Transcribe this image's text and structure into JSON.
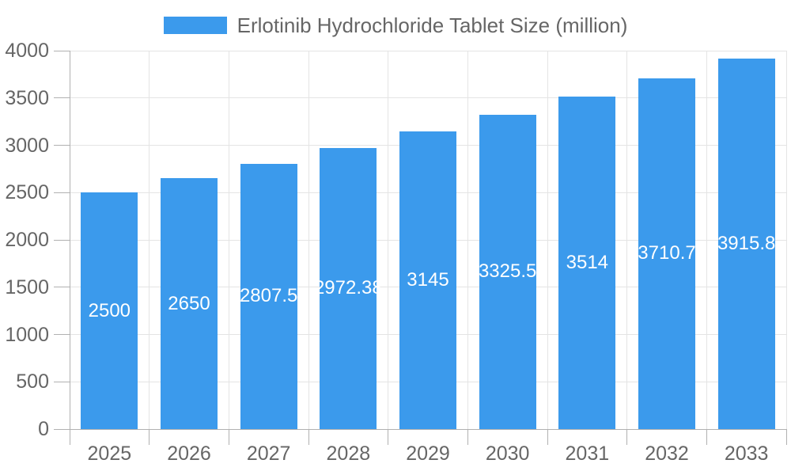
{
  "legend": {
    "label": "Erlotinib Hydrochloride Tablet Size (million)"
  },
  "colors": {
    "bar": "#3B9AEC",
    "grid": "#E4E4E4",
    "axis": "#B1B1B1",
    "tick_text": "#666666",
    "value_label": "#FFFFFF",
    "background": "#FFFFFF"
  },
  "chart_data": {
    "type": "bar",
    "title": "Erlotinib Hydrochloride Tablet Size (million)",
    "categories": [
      "2025",
      "2026",
      "2027",
      "2028",
      "2029",
      "2030",
      "2031",
      "2032",
      "2033"
    ],
    "values": [
      2500,
      2650,
      2807.5,
      2972.38,
      3145,
      3325.5,
      3514,
      3710.7,
      3915.8
    ],
    "value_labels": [
      "2500",
      "2650",
      "2807.5",
      "2972.38",
      "3145",
      "3325.5",
      "3514",
      "3710.7",
      "3915.8"
    ],
    "xlabel": "",
    "ylabel": "",
    "ylim": [
      0,
      4000
    ],
    "yticks": [
      0,
      500,
      1000,
      1500,
      2000,
      2500,
      3000,
      3500,
      4000
    ],
    "grid": true,
    "legend_position": "top",
    "value_label_position": "center-inside"
  }
}
